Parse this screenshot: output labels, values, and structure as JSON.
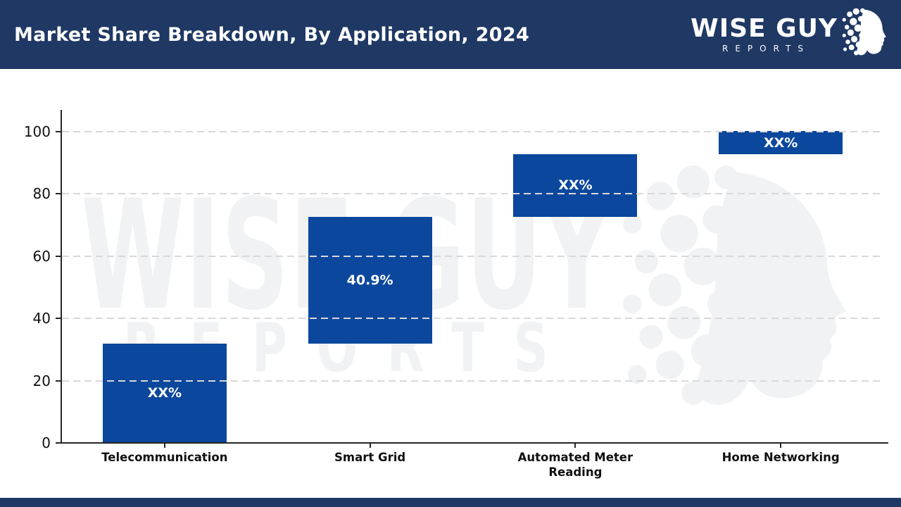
{
  "header": {
    "title": "Market Share Breakdown, By Application, 2024",
    "logo": {
      "line1": "WISE GUY",
      "line2": "REPORTS"
    }
  },
  "watermark": {
    "line1": "WISE GUY",
    "line2": "REPORTS"
  },
  "colors": {
    "header_bg": "#1F3864",
    "footer_bg": "#1F3864",
    "bar": "#0B479D",
    "gridline": "#D9D9D9",
    "watermark": "#F1F2F4",
    "axis": "#262626",
    "bar_label": "#FFFFFF"
  },
  "chart_data": {
    "type": "bar",
    "subtype": "waterfall-floating-bars",
    "title": "Market Share Breakdown, By Application, 2024",
    "categories": [
      "Telecommunication",
      "Smart Grid",
      "Automated Meter Reading",
      "Home Networking"
    ],
    "series": [
      {
        "name": "Market Share",
        "segments": [
          {
            "category": "Telecommunication",
            "start": 0,
            "end": 31.6,
            "label": "XX%"
          },
          {
            "category": "Smart Grid",
            "start": 31.6,
            "end": 72.5,
            "label": "40.9%"
          },
          {
            "category": "Automated Meter Reading",
            "start": 72.5,
            "end": 92.5,
            "label": "XX%"
          },
          {
            "category": "Home Networking",
            "start": 92.5,
            "end": 100,
            "label": "XX%"
          }
        ]
      }
    ],
    "xlabel": "",
    "ylabel": "",
    "ylim": [
      0,
      100
    ],
    "yticks": [
      0,
      20,
      40,
      60,
      80,
      100
    ],
    "grid": "horizontal-dashed",
    "legend": "none"
  }
}
